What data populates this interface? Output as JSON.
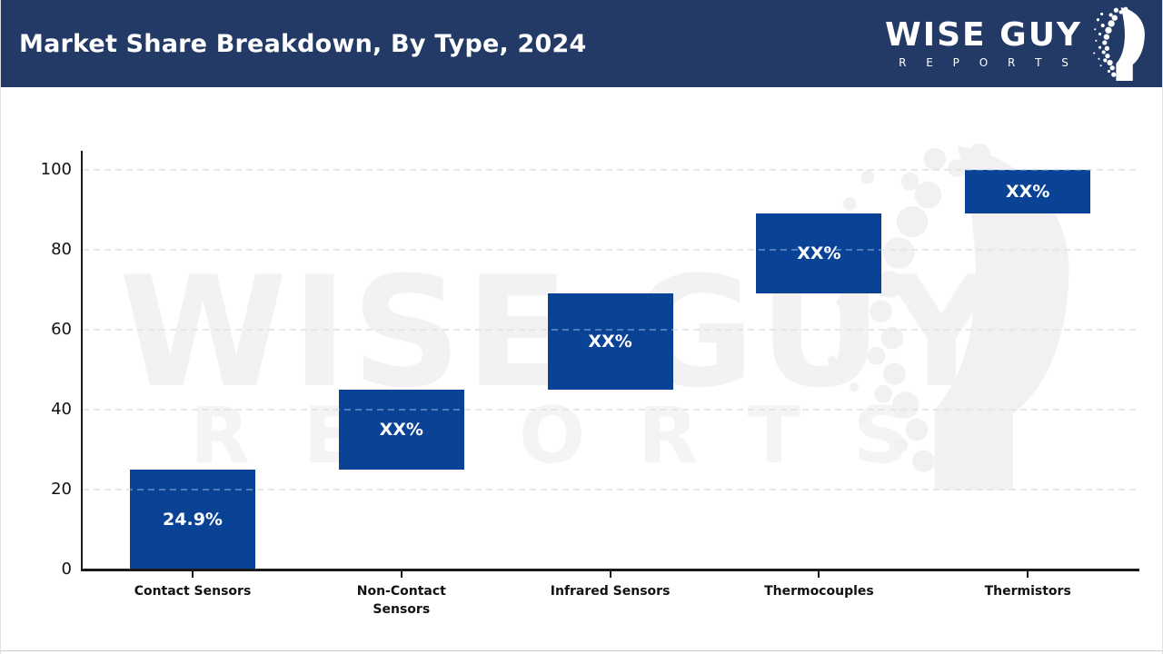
{
  "header": {
    "title": "Market Share Breakdown, By Type, 2024",
    "logo_line1": "WISE GUY",
    "logo_line2": "R E P O R T S"
  },
  "watermark": {
    "line1": "WISE GUY",
    "line2": "REPORTS"
  },
  "colors": {
    "header_bg": "#233a67",
    "bar_blue": "#0a4296",
    "grid_gray": "#dcdcdc",
    "axis_black": "#1a1a1a",
    "watermark_gray": "#f2f2f4"
  },
  "chart_data": {
    "type": "bar",
    "subtype": "waterfall",
    "title": "Market Share Breakdown, By Type, 2024",
    "xlabel": "",
    "ylabel": "",
    "categories": [
      "Contact Sensors",
      "Non-Contact Sensors",
      "Infrared Sensors",
      "Thermocouples",
      "Thermistors"
    ],
    "segments": [
      {
        "category": "Contact Sensors",
        "start": 0,
        "end": 25,
        "label": "24.9%"
      },
      {
        "category": "Non-Contact Sensors",
        "start": 25,
        "end": 45,
        "label": "XX%"
      },
      {
        "category": "Infrared Sensors",
        "start": 45,
        "end": 69,
        "label": "XX%"
      },
      {
        "category": "Thermocouples",
        "start": 69,
        "end": 89,
        "label": "XX%"
      },
      {
        "category": "Thermistors",
        "start": 89,
        "end": 100,
        "label": "XX%"
      }
    ],
    "yticks": [
      0,
      20,
      40,
      60,
      80,
      100
    ],
    "ylim": [
      0,
      105
    ],
    "grid": "horizontal dashed",
    "legend": "none",
    "bar_color": "#0a4296",
    "label_color": "#ffffff"
  }
}
